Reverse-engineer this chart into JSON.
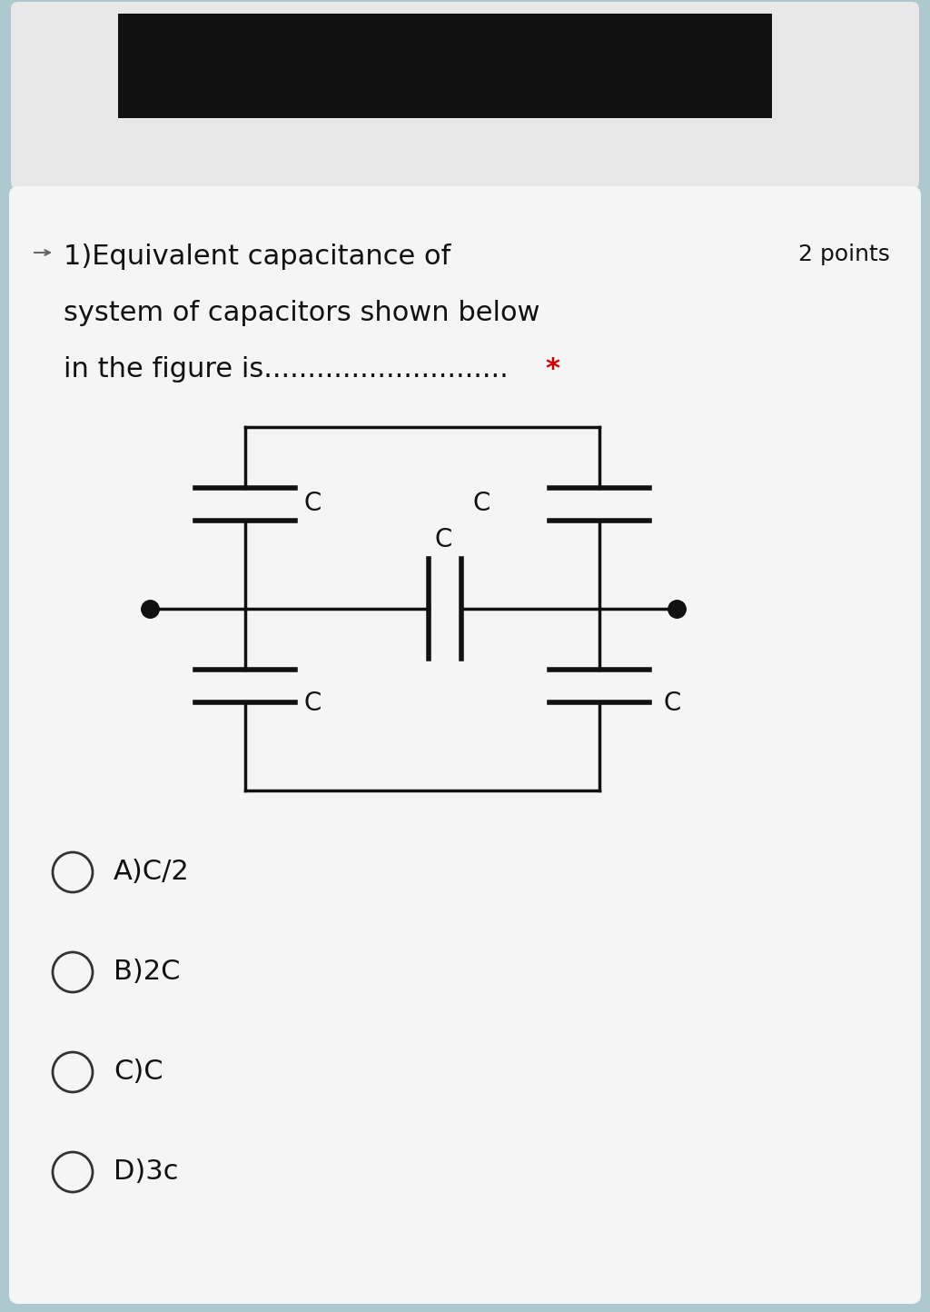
{
  "bg_outer": "#aec8d0",
  "card_bg": "#f2f2f2",
  "main_card_bg": "#f5f5f5",
  "title_line1": "1)Equivalent capacitance of",
  "points_text": "2 points",
  "title_line2": "system of capacitors shown below",
  "title_line3": "in the figure is............................",
  "star": "*",
  "options": [
    "A)C/2",
    "B)2C",
    "C)C",
    "D)3c"
  ],
  "line_color": "#111111",
  "text_color": "#111111",
  "star_color": "#cc0000",
  "circle_color": "#333333",
  "black_bar_color": "#111111",
  "top_card_bg": "#e8e8e8"
}
